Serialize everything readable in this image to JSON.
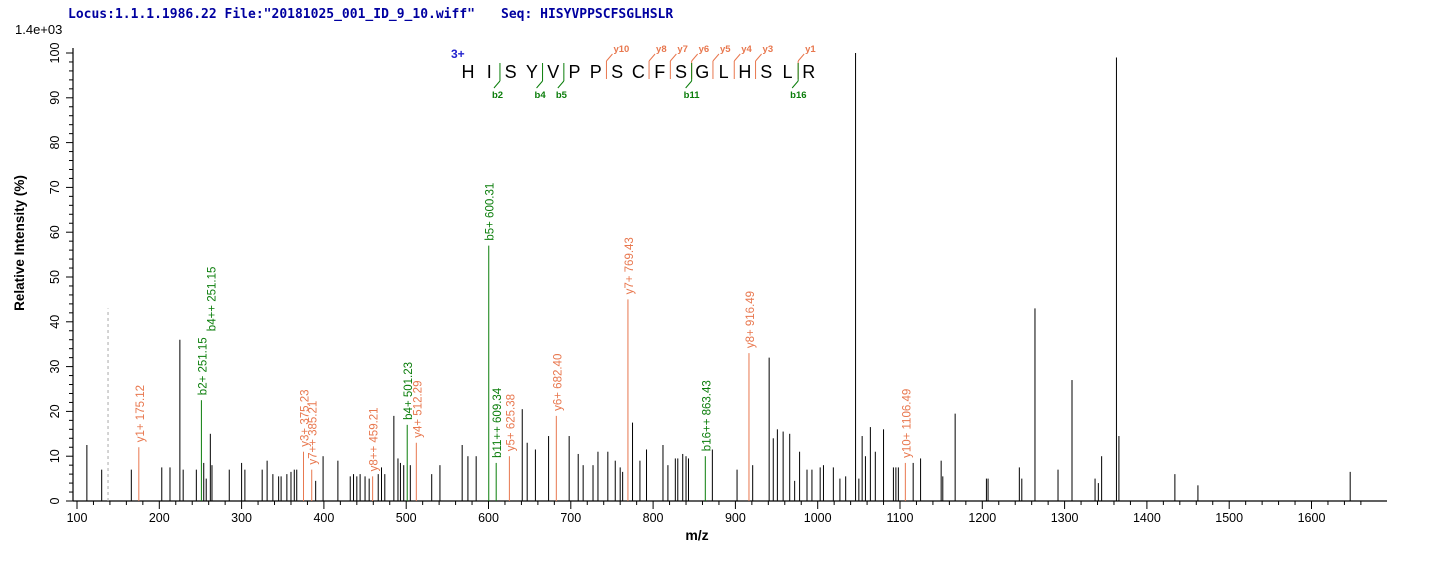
{
  "header": {
    "locus_file": "Locus:1.1.1.1986.22 File:\"20181025_001_ID_9_10.wiff\"",
    "seq_label": "Seq:",
    "sequence": "HISYVPPSCFSGLHSLR",
    "intensity_scale": "1.4e+03"
  },
  "colors": {
    "header_text": "#0000A0",
    "b_ion": "#0A7D0A",
    "y_ion": "#E8774E",
    "peak_black": "#000000",
    "axis": "#000000",
    "charge_label": "#2222CE",
    "precursor_dashed": "#A9A9A9"
  },
  "peptide": {
    "charge_label": "3+",
    "residues": [
      "H",
      "I",
      "S",
      "Y",
      "V",
      "P",
      "P",
      "S",
      "C",
      "F",
      "S",
      "G",
      "L",
      "H",
      "S",
      "L",
      "R"
    ],
    "cuts": [
      {
        "after_residue": 2,
        "b": "b2"
      },
      {
        "after_residue": 4,
        "b": "b4"
      },
      {
        "after_residue": 5,
        "b": "b5"
      },
      {
        "after_residue": 7,
        "y": "y10"
      },
      {
        "after_residue": 9,
        "y": "y8"
      },
      {
        "after_residue": 10,
        "y": "y7"
      },
      {
        "after_residue": 11,
        "y": "y6",
        "b": "b11"
      },
      {
        "after_residue": 12,
        "y": "y5"
      },
      {
        "after_residue": 13,
        "y": "y4"
      },
      {
        "after_residue": 14,
        "y": "y3"
      },
      {
        "after_residue": 16,
        "y": "y1",
        "b": "b16"
      }
    ]
  },
  "chart_data": {
    "type": "bar",
    "subtype": "ms2-stick-spectrum",
    "xlabel": "m/z",
    "ylabel": "Relative Intensity (%)",
    "y_scale_note": "1.4e+03",
    "xlim": [
      100,
      1692
    ],
    "ylim": [
      0,
      100
    ],
    "x_axis": {
      "major_tick_step": 100,
      "minor_tick_step": 20,
      "last_labeled_tick": 1600,
      "last_minor_tick": 1660,
      "tick_labels": [
        100,
        200,
        300,
        400,
        500,
        600,
        700,
        800,
        900,
        1000,
        1100,
        1200,
        1300,
        1400,
        1500,
        1600
      ]
    },
    "y_axis": {
      "major_tick_step": 10,
      "minor_tick_step": 2,
      "tick_labels": [
        0,
        10,
        20,
        30,
        40,
        50,
        60,
        70,
        80,
        90,
        100
      ]
    },
    "precursor_marker": {
      "mz": 137.7,
      "intensity": 43,
      "style": "dashed"
    },
    "annotated_peaks": [
      {
        "label": "y1+ 175.12",
        "mz": 175.12,
        "intensity": 12,
        "ion": "y"
      },
      {
        "label": "b2+ 251.15",
        "mz": 251.15,
        "intensity": 22.5,
        "ion": "b"
      },
      {
        "label": "b4++ 251.15",
        "mz": 251.15,
        "intensity": 22.5,
        "ion": "b",
        "label_only": true,
        "label_dx": 9,
        "label_dy": -64
      },
      {
        "label": "y3+ 375.23",
        "mz": 375.23,
        "intensity": 11,
        "ion": "y"
      },
      {
        "label": "y7++ 385.21",
        "mz": 385.21,
        "intensity": 7,
        "ion": "y"
      },
      {
        "label": "y8++ 459.21",
        "mz": 459.21,
        "intensity": 5.5,
        "ion": "y"
      },
      {
        "label": "b4+ 501.23",
        "mz": 501.23,
        "intensity": 17,
        "ion": "b"
      },
      {
        "label": "y4+ 512.29",
        "mz": 512.29,
        "intensity": 13,
        "ion": "y"
      },
      {
        "label": "b5+ 600.31",
        "mz": 600.31,
        "intensity": 57,
        "ion": "b"
      },
      {
        "label": "b11++ 609.34",
        "mz": 609.34,
        "intensity": 8.5,
        "ion": "b"
      },
      {
        "label": "y5+ 625.38",
        "mz": 625.38,
        "intensity": 10,
        "ion": "y"
      },
      {
        "label": "y6+ 682.40",
        "mz": 682.4,
        "intensity": 19,
        "ion": "y"
      },
      {
        "label": "y7+ 769.43",
        "mz": 769.43,
        "intensity": 45,
        "ion": "y"
      },
      {
        "label": "b16++ 863.43",
        "mz": 863.43,
        "intensity": 10,
        "ion": "b"
      },
      {
        "label": "y8+ 916.49",
        "mz": 916.49,
        "intensity": 33,
        "ion": "y"
      },
      {
        "label": "y10+ 1106.49",
        "mz": 1106.49,
        "intensity": 8.5,
        "ion": "y"
      }
    ],
    "unannotated_peaks": [
      [
        112,
        12.5
      ],
      [
        130,
        7
      ],
      [
        166,
        7
      ],
      [
        203,
        7.5
      ],
      [
        213,
        7.5
      ],
      [
        225,
        36
      ],
      [
        229,
        7
      ],
      [
        245,
        7
      ],
      [
        254,
        8.5
      ],
      [
        257,
        5
      ],
      [
        262,
        15
      ],
      [
        264,
        8
      ],
      [
        285,
        7
      ],
      [
        300,
        8.5
      ],
      [
        304,
        7
      ],
      [
        325,
        7
      ],
      [
        331,
        9
      ],
      [
        338,
        6
      ],
      [
        345,
        5.5
      ],
      [
        348,
        5.5
      ],
      [
        355,
        6
      ],
      [
        360,
        6.5
      ],
      [
        364,
        7
      ],
      [
        367,
        7
      ],
      [
        390,
        4.5
      ],
      [
        399,
        10
      ],
      [
        417,
        9
      ],
      [
        432,
        5.5
      ],
      [
        436,
        6
      ],
      [
        440,
        5.5
      ],
      [
        444,
        6
      ],
      [
        450,
        5.5
      ],
      [
        455,
        5
      ],
      [
        466,
        6
      ],
      [
        470,
        7.5
      ],
      [
        474,
        6
      ],
      [
        485,
        19
      ],
      [
        490,
        9.5
      ],
      [
        493,
        8.5
      ],
      [
        497,
        8
      ],
      [
        505,
        8
      ],
      [
        531,
        6
      ],
      [
        541,
        8
      ],
      [
        568,
        12.5
      ],
      [
        575,
        10
      ],
      [
        585,
        10
      ],
      [
        641,
        20.5
      ],
      [
        647,
        13
      ],
      [
        657,
        11.5
      ],
      [
        673,
        14.5
      ],
      [
        698,
        14.5
      ],
      [
        709,
        10.5
      ],
      [
        715,
        8
      ],
      [
        727,
        8
      ],
      [
        733,
        11
      ],
      [
        745,
        11
      ],
      [
        754,
        9
      ],
      [
        760,
        7.5
      ],
      [
        763,
        6.5
      ],
      [
        775,
        17.5
      ],
      [
        784,
        9
      ],
      [
        792,
        11.5
      ],
      [
        812,
        12.5
      ],
      [
        818,
        8
      ],
      [
        827,
        9.5
      ],
      [
        830,
        9.5
      ],
      [
        836,
        10.5
      ],
      [
        840,
        10
      ],
      [
        843,
        9.5
      ],
      [
        872,
        11.5
      ],
      [
        902,
        7
      ],
      [
        921,
        8
      ],
      [
        941,
        32
      ],
      [
        946,
        14
      ],
      [
        951,
        16
      ],
      [
        958,
        15.5
      ],
      [
        966,
        15
      ],
      [
        972,
        4.5
      ],
      [
        978,
        11
      ],
      [
        987,
        7
      ],
      [
        993,
        7
      ],
      [
        1003,
        7.5
      ],
      [
        1007,
        8
      ],
      [
        1019,
        7.5
      ],
      [
        1027,
        5
      ],
      [
        1034,
        5.5
      ],
      [
        1046,
        100
      ],
      [
        1050,
        5
      ],
      [
        1054,
        14.5
      ],
      [
        1058,
        10
      ],
      [
        1064,
        16.5
      ],
      [
        1070,
        11
      ],
      [
        1080,
        16
      ],
      [
        1092,
        7.5
      ],
      [
        1095,
        7.5
      ],
      [
        1098,
        7.5
      ],
      [
        1116,
        8.5
      ],
      [
        1125,
        9.5
      ],
      [
        1150,
        9
      ],
      [
        1152,
        5.5
      ],
      [
        1167,
        19.5
      ],
      [
        1205,
        5
      ],
      [
        1207,
        5
      ],
      [
        1245,
        7.5
      ],
      [
        1248,
        5
      ],
      [
        1264,
        43
      ],
      [
        1292,
        7
      ],
      [
        1309,
        27
      ],
      [
        1337,
        5
      ],
      [
        1341,
        4
      ],
      [
        1345,
        10
      ],
      [
        1363,
        99
      ],
      [
        1366,
        14.5
      ],
      [
        1434,
        6
      ],
      [
        1462,
        3.5
      ],
      [
        1647,
        6.5
      ]
    ]
  }
}
